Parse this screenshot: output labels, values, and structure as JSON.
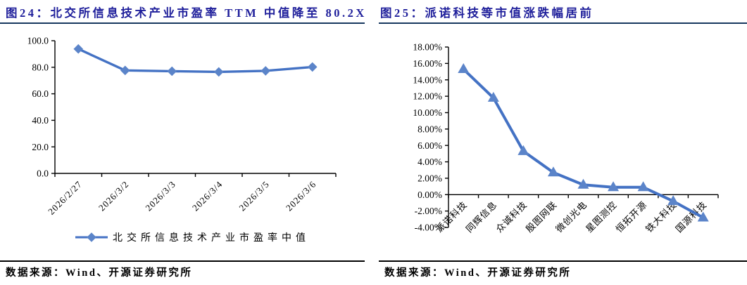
{
  "colors": {
    "title_text": "#1F1F9B",
    "title_rule": "#17375E",
    "source_rule": "#000000",
    "axis": "#000000",
    "line": "#4472C4",
    "marker_fill": "#5B84C9"
  },
  "panels": [
    {
      "title": "图24：北交所信息技术产业市盈率 TTM 中值降至 80.2X",
      "source": "数据来源：Wind、开源证券研究所"
    },
    {
      "title": "图25：派诺科技等市值涨跌幅居前",
      "source": "数据来源：Wind、开源证券研究所"
    }
  ],
  "chart_data": [
    {
      "type": "line",
      "title": "北交所信息技术产业市盈率 TTM 中值降至 80.2X",
      "categories": [
        "2026/2/27",
        "2026/3/2",
        "2026/3/3",
        "2026/3/4",
        "2026/3/5",
        "2026/3/6"
      ],
      "series": [
        {
          "name": "北交所信息技术产业市盈率中值",
          "values": [
            93.8,
            77.6,
            77.0,
            76.5,
            77.3,
            80.2
          ]
        }
      ],
      "ylim": [
        0,
        100
      ],
      "ytick_step": 20,
      "ytick_format": "fixed1",
      "marker": "diamond",
      "legend_position": "bottom",
      "grid": false
    },
    {
      "type": "line",
      "title": "派诺科技等市值涨跌幅居前",
      "categories": [
        "派诺科技",
        "同辉信息",
        "众诚科技",
        "殷图网联",
        "微创光电",
        "星图测控",
        "恒拓开源",
        "铁大科技",
        "国源科技"
      ],
      "series": [
        {
          "name": "市值涨跌幅",
          "values": [
            15.3,
            11.8,
            5.3,
            2.7,
            1.2,
            0.9,
            0.9,
            -0.8,
            -2.8
          ]
        }
      ],
      "ylim": [
        -4,
        18
      ],
      "ytick_step": 2,
      "ytick_format": "percent2",
      "marker": "triangle",
      "legend_position": "none",
      "grid": false
    }
  ]
}
